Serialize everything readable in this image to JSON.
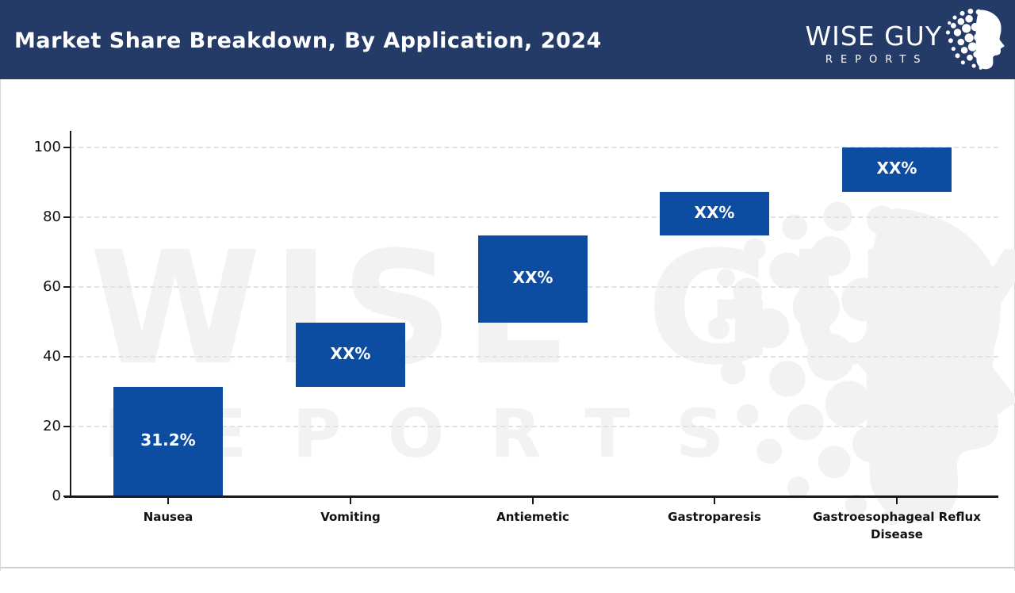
{
  "header": {
    "title": "Market Share Breakdown, By Application, 2024",
    "logo": {
      "wordmark": "WISE GUY",
      "subtext": "REPORTS"
    }
  },
  "watermark": {
    "wordmark": "WISE GUY",
    "subtext": "REPORTS"
  },
  "chart_data": {
    "type": "bar",
    "subtype": "waterfall",
    "title": "Market Share Breakdown, By Application, 2024",
    "categories": [
      "Nausea",
      "Vomiting",
      "Antiemetic",
      "Gastroparesis",
      "Gastroesophageal Reflux Disease"
    ],
    "segments": [
      {
        "category": "Nausea",
        "start": 0,
        "end": 31.2,
        "label": "31.2%"
      },
      {
        "category": "Vomiting",
        "start": 31.2,
        "end": 49.7,
        "label": "XX%"
      },
      {
        "category": "Antiemetic",
        "start": 49.7,
        "end": 74.6,
        "label": "XX%"
      },
      {
        "category": "Gastroparesis",
        "start": 74.6,
        "end": 87.2,
        "label": "XX%"
      },
      {
        "category": "Gastroesophageal Reflux Disease",
        "start": 87.2,
        "end": 99.8,
        "label": "XX%"
      }
    ],
    "yticks": [
      0,
      20,
      40,
      60,
      80,
      100
    ],
    "ylim": [
      0,
      104.7
    ],
    "xlabel": "",
    "ylabel": "",
    "grid": true,
    "legend": false,
    "bar_color": "#0d4da1",
    "bar_label_color": "#ffffff",
    "header_color": "#243a67",
    "gridline_color": "#e1e1e1"
  }
}
